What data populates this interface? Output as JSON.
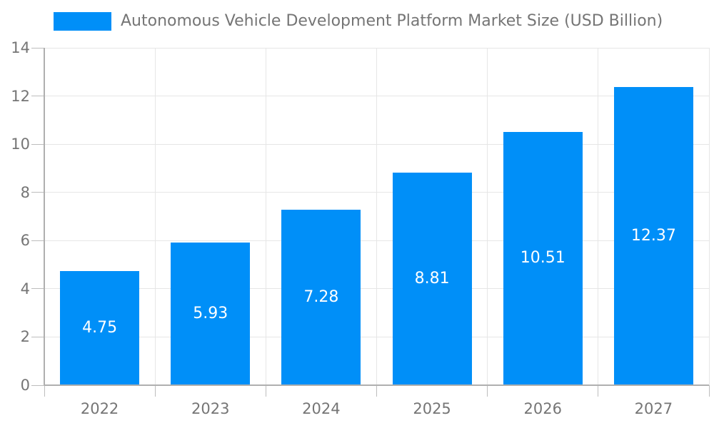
{
  "chart_data": {
    "type": "bar",
    "title": "Autonomous Vehicle Development Platform Market Size (USD Billion)",
    "categories": [
      "2022",
      "2023",
      "2024",
      "2025",
      "2026",
      "2027"
    ],
    "values": [
      4.75,
      5.93,
      7.28,
      8.81,
      10.51,
      12.37
    ],
    "value_labels": [
      "4.75",
      "5.93",
      "7.28",
      "8.81",
      "10.51",
      "12.37"
    ],
    "xlabel": "",
    "ylabel": "",
    "ylim": [
      0,
      14
    ],
    "yticks": [
      0,
      2,
      4,
      6,
      8,
      10,
      12,
      14
    ],
    "grid": true,
    "legend_position": "top-left",
    "colors": {
      "bar": "#008FF8",
      "grid_line": "#E6E6E6",
      "axis_line": "#AFAFAF",
      "tick_mark": "#BDBDBD",
      "tick_text": "#757575",
      "title_text": "#757575",
      "value_label_text": "#FFFFFF",
      "background": "#FFFFFF"
    }
  }
}
